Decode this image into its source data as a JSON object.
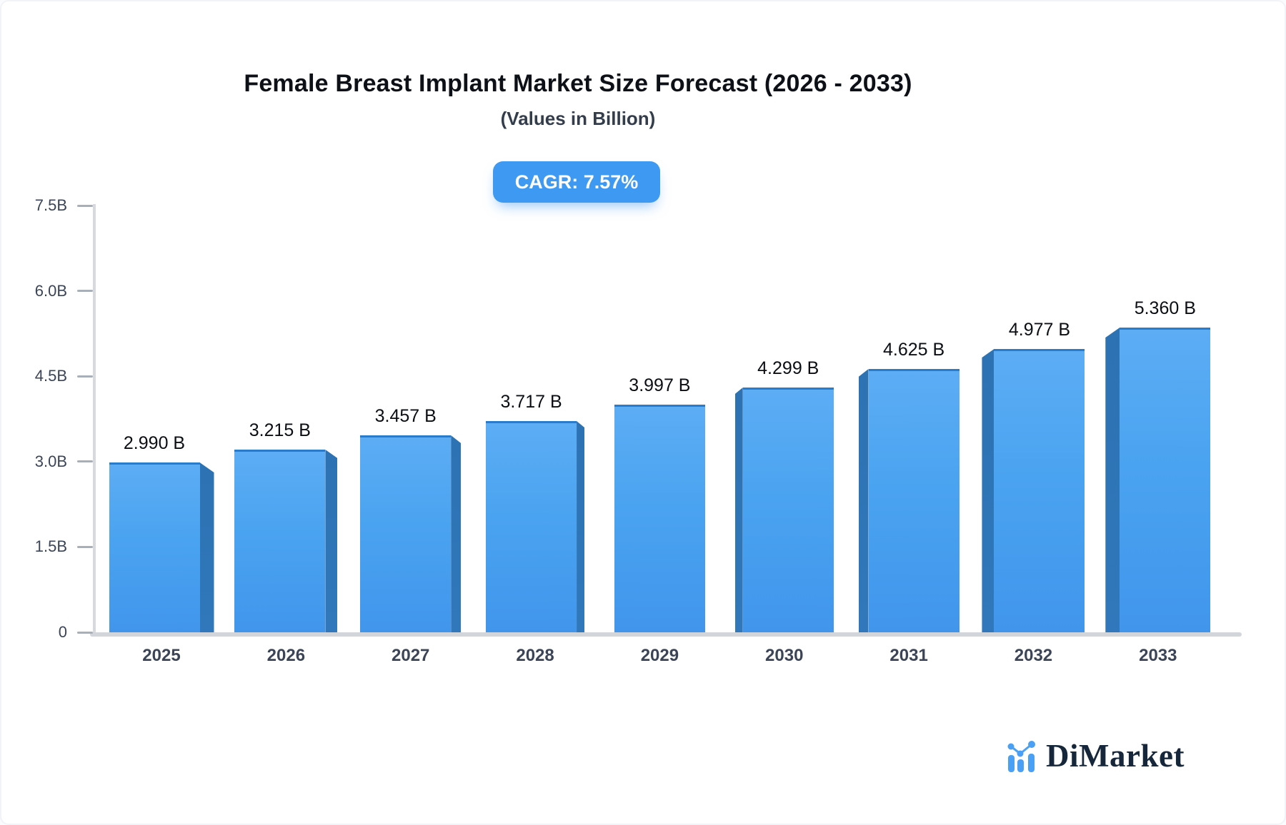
{
  "title": "Female Breast Implant Market Size Forecast (2026 - 2033)",
  "subtitle": "(Values in Billion)",
  "cagr_badge": "CAGR: 7.57%",
  "logo": {
    "text": "DiMarket",
    "icon": "mini-bar-chart-with-trendline"
  },
  "colors": {
    "bar_main": "#4aa3f0",
    "bar_main_light": "#5cadf4",
    "bar_main_deep": "#4196ec",
    "bar_top_edge": "#2a7bc9",
    "bar_side_face": "#2d72b2",
    "badge_bg": "#3e99f2",
    "axis_line": "#d7d9dd",
    "tick_dash": "#a9afb8",
    "axis_text": "#3b4557",
    "value_text": "#0b0e13",
    "title_text": "#0d1117",
    "logo_text": "#16273b",
    "logo_icon_blue": "#4aa0f5"
  },
  "chart_data": {
    "type": "bar",
    "title": "Female Breast Implant Market Size Forecast (2026 - 2033)",
    "subtitle": "(Values in Billion)",
    "categories": [
      "2025",
      "2026",
      "2027",
      "2028",
      "2029",
      "2030",
      "2031",
      "2032",
      "2033"
    ],
    "values": [
      2.99,
      3.215,
      3.457,
      3.717,
      3.997,
      4.299,
      4.625,
      4.977,
      5.36
    ],
    "value_labels": [
      "2.990 B",
      "3.215 B",
      "3.457 B",
      "3.717 B",
      "3.997 B",
      "4.299 B",
      "4.625 B",
      "4.977 B",
      "5.360 B"
    ],
    "unit": "Billion",
    "y_ticks": [
      {
        "label": "7.5B",
        "value": 7.5
      },
      {
        "label": "6.0B",
        "value": 6.0
      },
      {
        "label": "4.5B",
        "value": 4.5
      },
      {
        "label": "3.0B",
        "value": 3.0
      },
      {
        "label": "1.5B",
        "value": 1.5
      },
      {
        "label": "0",
        "value": 0
      }
    ],
    "ylim": [
      0,
      7.5
    ],
    "grid": false,
    "legend": false,
    "bar_style": "3d-perspective-center-vanishing"
  }
}
